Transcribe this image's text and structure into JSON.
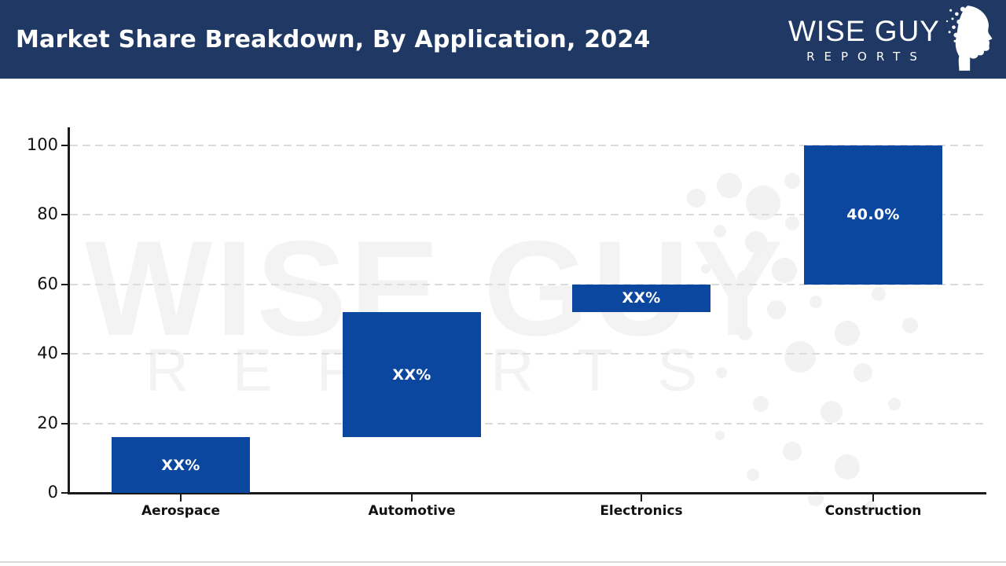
{
  "header": {
    "title": "Market Share Breakdown, By Application, 2024",
    "logo": {
      "line1": "WISE GUY",
      "line2": "REPORTS",
      "head_icon": "dotted-face-profile"
    }
  },
  "watermark": {
    "line1": "WISE GUY",
    "line2": "REPORTS"
  },
  "chart_data": {
    "type": "bar",
    "subtype": "floating-waterfall-segments",
    "title": "Market Share Breakdown, By Application, 2024",
    "categories": [
      "Aerospace",
      "Automotive",
      "Electronics",
      "Construction"
    ],
    "bars": [
      {
        "category": "Aerospace",
        "start": 0,
        "end": 16,
        "value_label": "XX%"
      },
      {
        "category": "Automotive",
        "start": 16,
        "end": 52,
        "value_label": "XX%"
      },
      {
        "category": "Electronics",
        "start": 52,
        "end": 60,
        "value_label": "XX%"
      },
      {
        "category": "Construction",
        "start": 60,
        "end": 100,
        "value_label": "40.0%"
      }
    ],
    "yticks": [
      "0",
      "20",
      "40",
      "60",
      "80",
      "100"
    ],
    "ytick_values": [
      0,
      20,
      40,
      60,
      80,
      100
    ],
    "ylim": [
      0,
      105
    ],
    "xlabel": "",
    "ylabel": "",
    "grid": "horizontal-dashed",
    "legend": "none",
    "bar_color": "#0C479F"
  },
  "colors": {
    "header_bg": "#1F3864",
    "bar": "#0C479F",
    "grid": "#dcdcdc",
    "axis": "#1a1a1a",
    "watermark": "#f3f3f3",
    "title_text": "#ffffff"
  }
}
